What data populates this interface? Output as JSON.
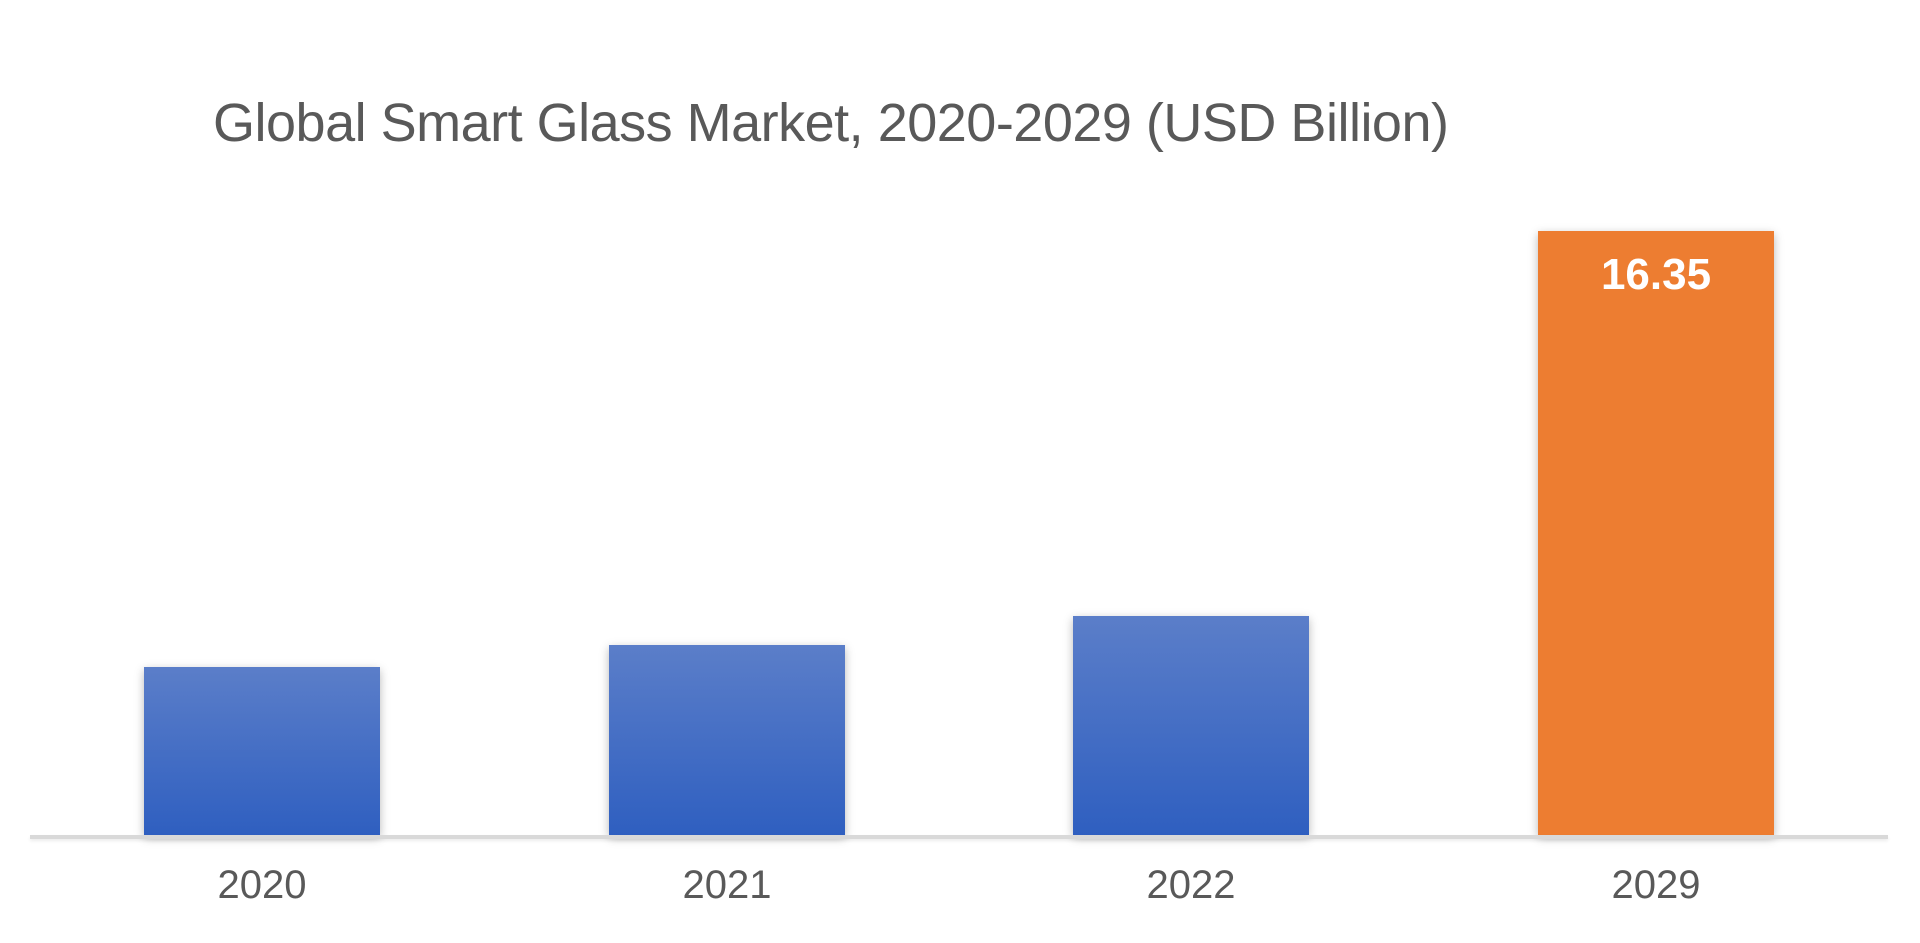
{
  "colors": {
    "title_text": "#595959",
    "tick_text": "#595959",
    "axis_line": "#d9d9d9",
    "bar_blue_top": "#5b7ec9",
    "bar_blue_bottom": "#2f5fc0",
    "bar_orange": "#ed7d31",
    "data_label_text": "#ffffff",
    "background": "#ffffff"
  },
  "chart_data": {
    "type": "bar",
    "title": "Global Smart Glass Market, 2020-2029 (USD Billion)",
    "xlabel": "",
    "ylabel": "",
    "categories": [
      "2020",
      "2021",
      "2022",
      "2029"
    ],
    "values": [
      4.55,
      5.15,
      5.93,
      16.35
    ],
    "data_labels": [
      "",
      "",
      "",
      "16.35"
    ],
    "bar_color_roles": [
      "blue",
      "blue",
      "blue",
      "orange"
    ],
    "ylim": [
      0,
      18
    ],
    "grid": false,
    "legend": false,
    "y_axis_visible": false,
    "x_axis_line_visible": true
  }
}
